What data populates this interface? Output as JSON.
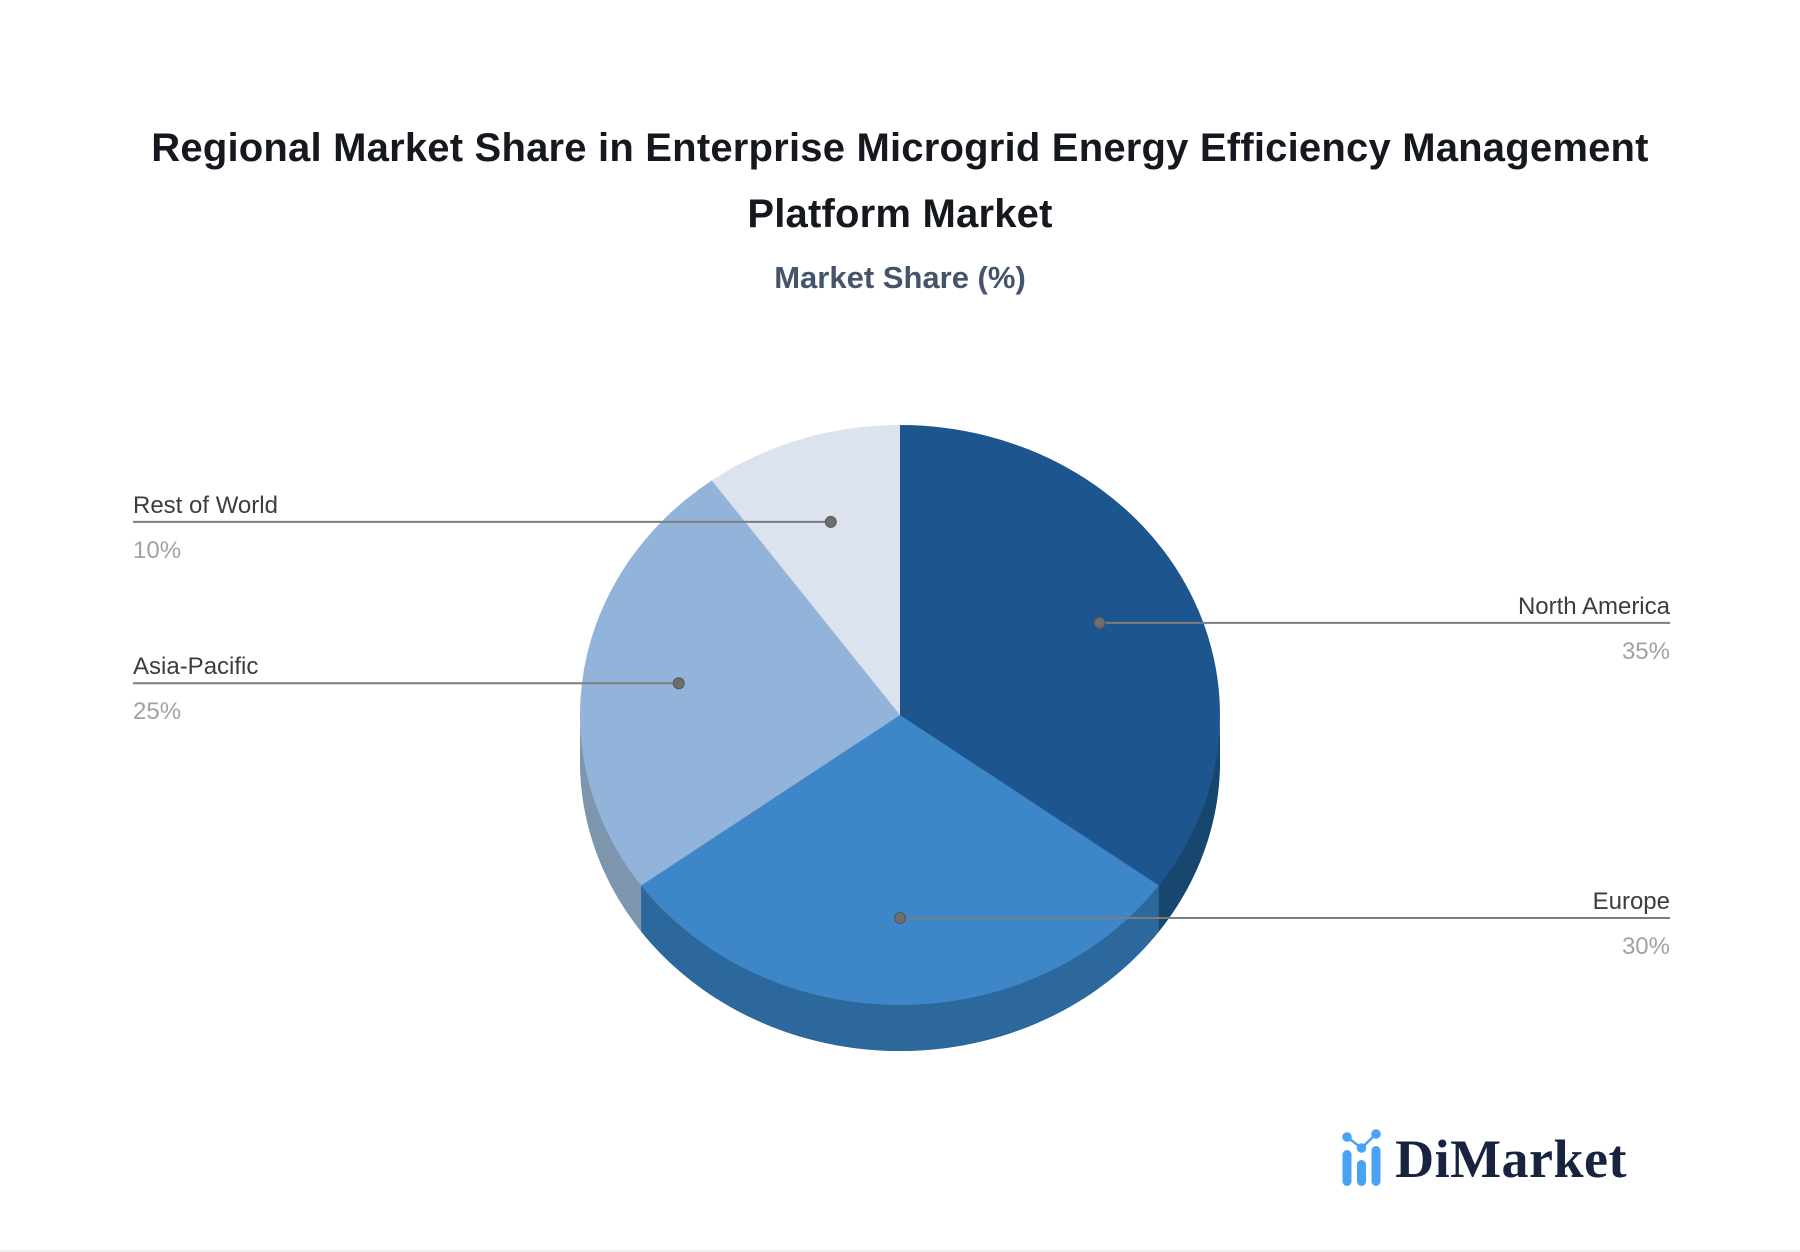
{
  "header": {
    "title_lines": [
      "Regional Market Share in Enterprise Microgrid Energy Efficiency Management",
      "Platform Market"
    ],
    "subtitle": "Market Share (%)"
  },
  "chart_data": {
    "type": "pie",
    "style": "3d",
    "title": "Regional Market Share in Enterprise Microgrid Energy Efficiency Management Platform Market",
    "value_label": "Market Share (%)",
    "unit": "%",
    "start_angle_deg": 0,
    "direction": "clockwise",
    "legend_position": "none",
    "slices": [
      {
        "label": "North America",
        "value": 35,
        "color": "#1d568e",
        "side_color": "#17466f"
      },
      {
        "label": "Europe",
        "value": 30,
        "color": "#3d86c8",
        "side_color": "#2d689c"
      },
      {
        "label": "Asia-Pacific",
        "value": 25,
        "color": "#92b4da",
        "side_color": "#7e96ad"
      },
      {
        "label": "Rest of World",
        "value": 10,
        "color": "#dce3ee",
        "side_color": "#b8c3d3"
      }
    ],
    "label_color": "#3d3d3d",
    "value_color": "#a2a2a2",
    "leader_line_color": "#7c7c7c"
  },
  "branding": {
    "logo_text": "DiMarket",
    "logo_icon": "bar-line-chart-icon",
    "logo_icon_color": "#4aa2f5",
    "logo_text_color": "#17233f"
  }
}
